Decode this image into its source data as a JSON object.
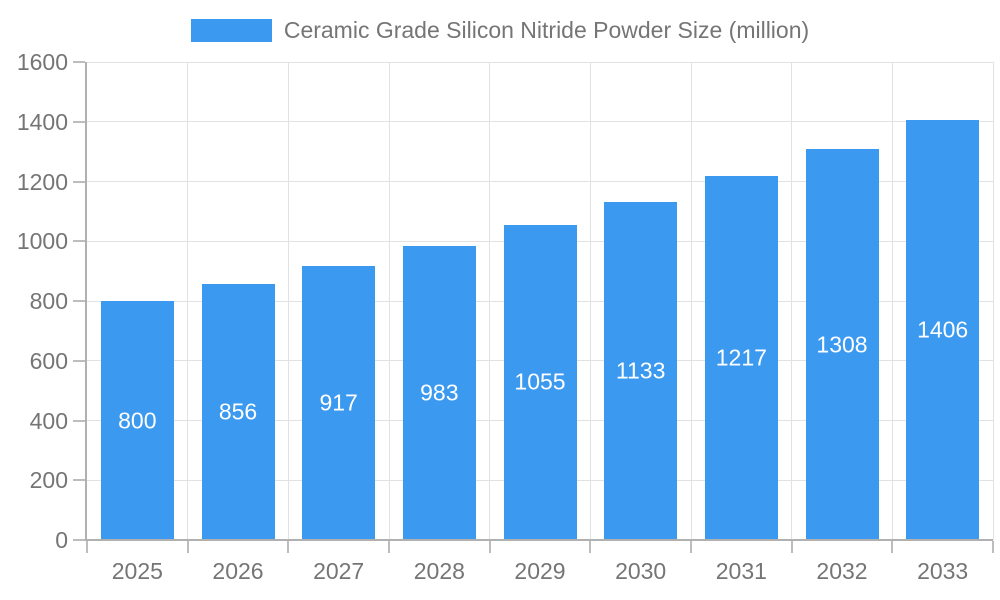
{
  "legend": {
    "label": "Ceramic Grade Silicon Nitride Powder Size (million)"
  },
  "chart_data": {
    "type": "bar",
    "title": "Ceramic Grade Silicon Nitride Powder Size (million)",
    "categories": [
      "2025",
      "2026",
      "2027",
      "2028",
      "2029",
      "2030",
      "2031",
      "2032",
      "2033"
    ],
    "values": [
      800,
      856,
      917,
      983,
      1055,
      1133,
      1217,
      1308,
      1406
    ],
    "xlabel": "",
    "ylabel": "",
    "ylim": [
      0,
      1600
    ],
    "yticks": [
      0,
      200,
      400,
      600,
      800,
      1000,
      1200,
      1400,
      1600
    ],
    "grid": true,
    "legend_position": "top",
    "bar_color": "#3B99F0",
    "grid_color": "#E2E2E2",
    "axis_line_color": "#B0B0B0",
    "axis_text_color": "#757575",
    "value_label_color": "#FFFFFF"
  }
}
